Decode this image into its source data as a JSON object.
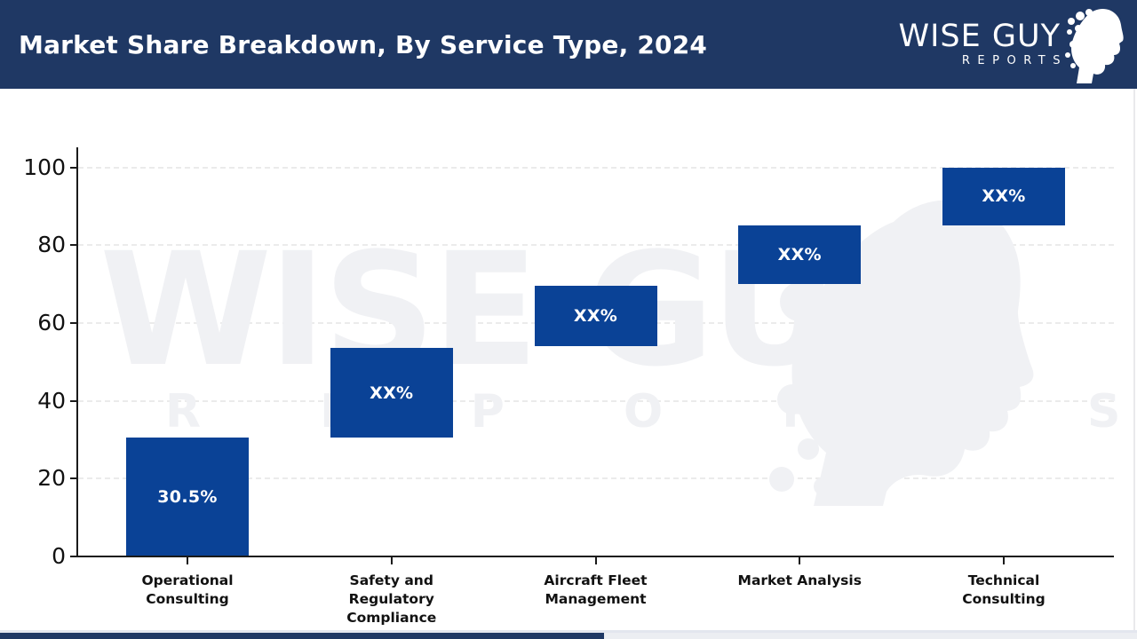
{
  "header": {
    "title": "Market Share Breakdown, By Service Type, 2024",
    "logo": {
      "line1": "WISE GUY",
      "line2": "REPORTS"
    },
    "background": "#1f3864"
  },
  "watermark": {
    "line1": "WISE GUY",
    "line2": "REPORTS"
  },
  "footer": {
    "navy_color": "#1f3864",
    "light_color": "#eceef2"
  },
  "chart_data": {
    "type": "bar",
    "subtype": "waterfall",
    "title": "Market Share Breakdown, By Service Type, 2024",
    "categories": [
      "Operational Consulting",
      "Safety and Regulatory Compliance",
      "Aircraft Fleet Management",
      "Market Analysis",
      "Technical Consulting"
    ],
    "category_label_lines": [
      [
        "Operational",
        "Consulting"
      ],
      [
        "Safety and",
        "Regulatory",
        "Compliance"
      ],
      [
        "Aircraft Fleet",
        "Management"
      ],
      [
        "Market Analysis"
      ],
      [
        "Technical",
        "Consulting"
      ]
    ],
    "bars": [
      {
        "category": "Operational Consulting",
        "start": 0,
        "end": 30.5,
        "label": "30.5%"
      },
      {
        "category": "Safety and Regulatory Compliance",
        "start": 30.5,
        "end": 53.5,
        "label": "XX%"
      },
      {
        "category": "Aircraft Fleet Management",
        "start": 54,
        "end": 69.5,
        "label": "XX%"
      },
      {
        "category": "Market Analysis",
        "start": 70,
        "end": 85,
        "label": "XX%"
      },
      {
        "category": "Technical Consulting",
        "start": 85,
        "end": 100,
        "label": "XX%"
      }
    ],
    "xlabel": "",
    "ylabel": "",
    "ylim": [
      0,
      100
    ],
    "yticks": [
      0,
      20,
      40,
      60,
      80,
      100
    ],
    "grid": {
      "show": true,
      "style": "dashed",
      "axis": "y"
    },
    "bar_color": "#0a4296",
    "value_label_color": "#ffffff",
    "legend": null
  }
}
